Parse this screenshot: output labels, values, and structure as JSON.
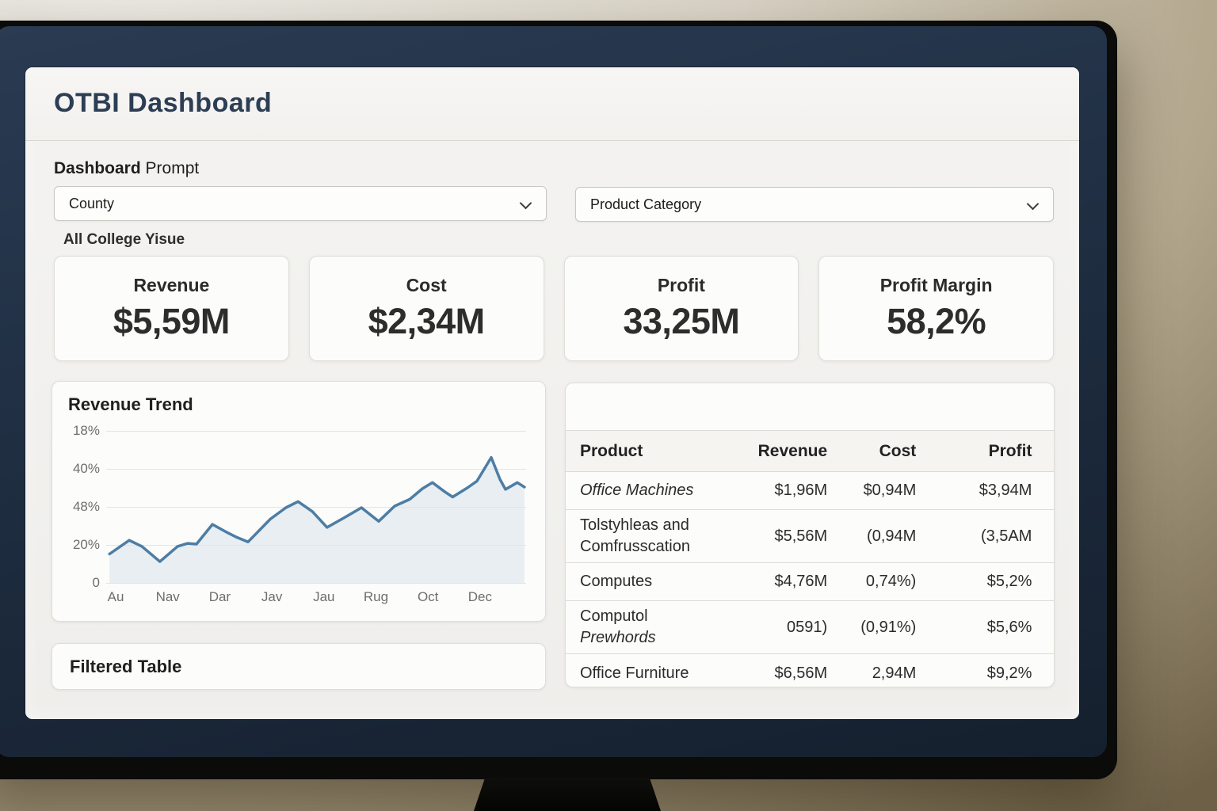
{
  "app": {
    "title": "OTBI Dashboard"
  },
  "prompt": {
    "label_bold": "Dashboard",
    "label_rest": " Prompt",
    "filters": [
      {
        "value": "County"
      },
      {
        "value": "Product Category"
      }
    ],
    "applied_note": "All College Yisue"
  },
  "kpis": [
    {
      "label": "Revenue",
      "value": "$5,59M"
    },
    {
      "label": "Cost",
      "value": "$2,34M"
    },
    {
      "label": "Profit",
      "value": "33,25M"
    },
    {
      "label": "Profit Margin",
      "value": "58,2%"
    }
  ],
  "chart_data": {
    "type": "area",
    "title": "Revenue Trend",
    "y_ticks": [
      "18%",
      "40%",
      "48%",
      "20%",
      "0"
    ],
    "x_labels": [
      "Au",
      "Nav",
      "Dar",
      "Jav",
      "Jau",
      "Rug",
      "Oct",
      "Dec"
    ],
    "line_color": "#4d7da4",
    "fill_color": "#dce4ec",
    "grid": true,
    "legend": "none",
    "points": [
      [
        0.8,
        19
      ],
      [
        5.5,
        28
      ],
      [
        8.5,
        24
      ],
      [
        12.8,
        14
      ],
      [
        17,
        24
      ],
      [
        19.4,
        26
      ],
      [
        21.5,
        25.5
      ],
      [
        25.3,
        38.5
      ],
      [
        28.9,
        33
      ],
      [
        31.1,
        30
      ],
      [
        33.8,
        27
      ],
      [
        39.1,
        42
      ],
      [
        42.8,
        49.5
      ],
      [
        45.7,
        53.5
      ],
      [
        49.1,
        47
      ],
      [
        52.6,
        36.5
      ],
      [
        56.8,
        43
      ],
      [
        60.8,
        49.5
      ],
      [
        64.9,
        40.5
      ],
      [
        68.7,
        50.5
      ],
      [
        72.3,
        55
      ],
      [
        75.3,
        62
      ],
      [
        77.7,
        66
      ],
      [
        80.6,
        60
      ],
      [
        82.5,
        56.5
      ],
      [
        86,
        62.5
      ],
      [
        88.3,
        67
      ],
      [
        91.7,
        82.5
      ],
      [
        93.8,
        68
      ],
      [
        95.1,
        61.5
      ],
      [
        97.9,
        66
      ],
      [
        99.6,
        63
      ]
    ]
  },
  "table": {
    "headers": [
      "Product",
      "Revenue",
      "Cost",
      "Profit"
    ],
    "rows": [
      {
        "product_regular": "",
        "product_italic": "Office Machines",
        "revenue": "$1,96M",
        "cost": "$0,94M",
        "profit": "$3,94M"
      },
      {
        "product_regular": "Tolstyhleas and Comfrusscation",
        "product_italic": "",
        "revenue": "$5,56M",
        "cost": "(0,94M",
        "profit": "(3,5AM"
      },
      {
        "product_regular": "Computes",
        "product_italic": "",
        "revenue": "$4,76M",
        "cost": "0,74%)",
        "profit": "$5,2%"
      },
      {
        "product_regular": "Computol ",
        "product_italic": "Prewhords",
        "revenue": "0591)",
        "cost": "(0,91%)",
        "profit": "$5,6%"
      },
      {
        "product_regular": "Office Furniture",
        "product_italic": "",
        "revenue": "$6,56M",
        "cost": "2,94M",
        "profit": "$9,2%"
      }
    ]
  },
  "filtered_table": {
    "label": "Filtered Table"
  },
  "colors": {
    "accent_navy": "#2d3e54",
    "bezel": "#1d2b3e",
    "screen_bg": "#f2f1ee"
  }
}
